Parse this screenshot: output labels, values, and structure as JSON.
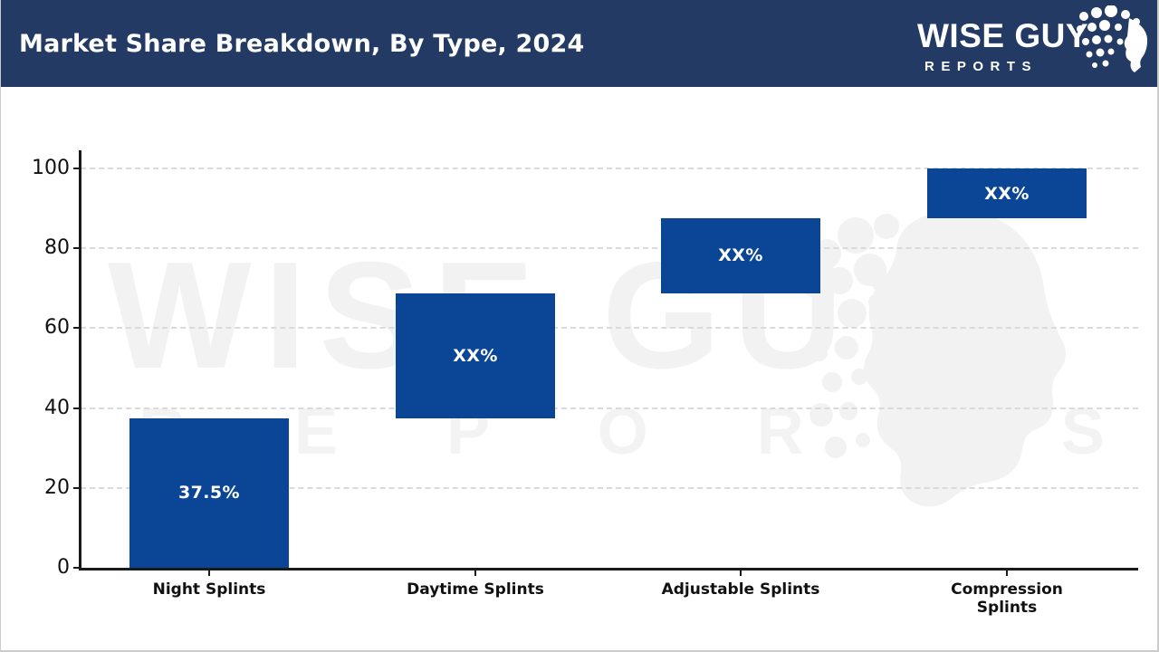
{
  "header": {
    "title": "Market Share Breakdown, By Type, 2024",
    "logo": {
      "line1": "WISE GUY",
      "line2": "R E P O R T S"
    }
  },
  "watermark": {
    "line1": "WISE GUY",
    "line2": "R E P O R T S"
  },
  "colors": {
    "header_bg": "#223a64",
    "bar": "#0b4595",
    "bar_label": "#ffffff",
    "grid": "#dadada",
    "axis": "#1a1a1a",
    "watermark": "#f2f2f2",
    "page_border": "#cbcbcb"
  },
  "chart_data": {
    "type": "bar",
    "subtype": "waterfall",
    "title": "Market Share Breakdown, By Type, 2024",
    "categories": [
      "Night Splints",
      "Daytime Splints",
      "Adjustable Splints",
      "Compression Splints"
    ],
    "series": [
      {
        "name": "Market Share",
        "segments": [
          {
            "category": "Night Splints",
            "start": 0,
            "end": 37.5,
            "label": "37.5%"
          },
          {
            "category": "Daytime Splints",
            "start": 37.5,
            "end": 68.75,
            "label": "XX%"
          },
          {
            "category": "Adjustable Splints",
            "start": 68.75,
            "end": 87.5,
            "label": "XX%"
          },
          {
            "category": "Compression Splints",
            "start": 87.5,
            "end": 100,
            "label": "XX%"
          }
        ]
      }
    ],
    "xlabel": "",
    "ylabel": "",
    "ylim": [
      0,
      100
    ],
    "yticks": [
      0,
      20,
      40,
      60,
      80,
      100
    ],
    "grid": "horizontal-dashed",
    "legend": "none"
  }
}
